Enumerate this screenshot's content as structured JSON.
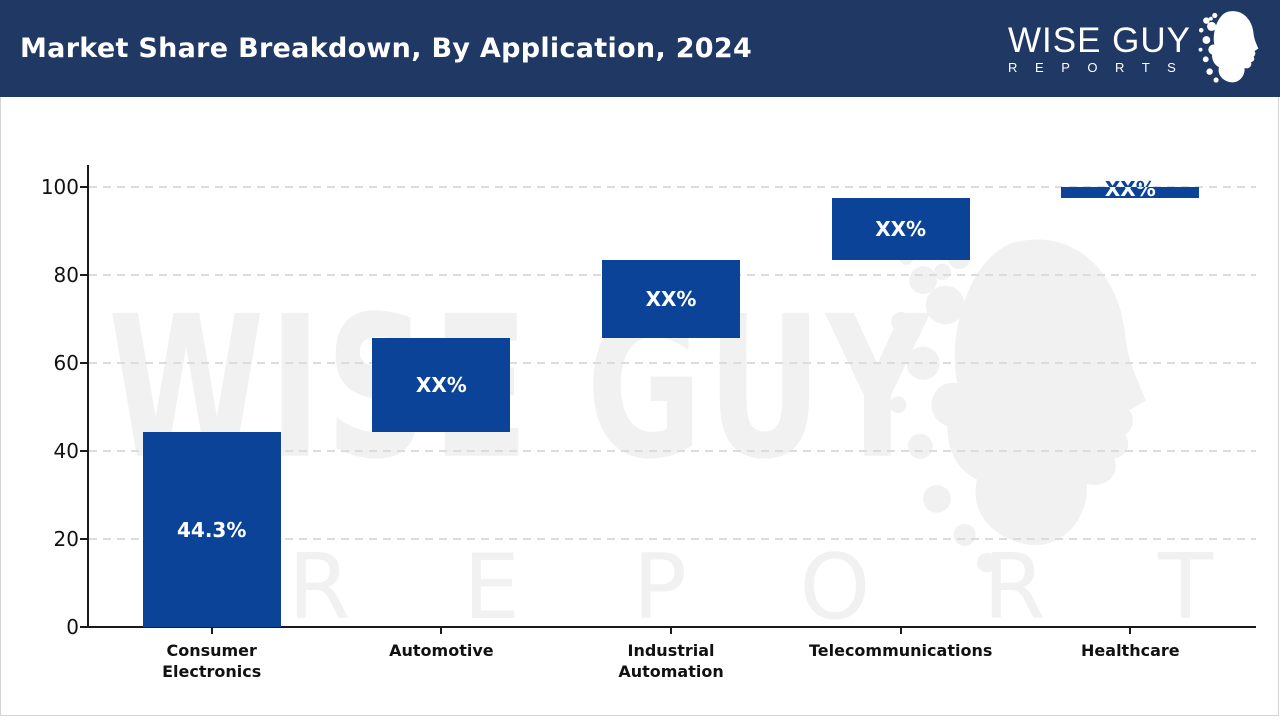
{
  "header": {
    "title": "Market Share Breakdown, By Application, 2024",
    "logo": {
      "line1": "WISE GUY",
      "line2": "R E P O R T S"
    }
  },
  "watermark": {
    "line1": "WISE GUY",
    "line2": "R E P O R T S"
  },
  "colors": {
    "header_bg": "#1f3864",
    "bar": "#0a4397",
    "grid": "#dcdcdc",
    "axis": "#1a1a1a",
    "watermark": "#f1f1f2",
    "bar_label": "#ffffff"
  },
  "chart_data": {
    "type": "bar",
    "subtype": "waterfall",
    "title": "Market Share Breakdown, By Application, 2024",
    "xlabel": "",
    "ylabel": "",
    "categories": [
      "Consumer Electronics",
      "Automotive",
      "Industrial Automation",
      "Telecommunications",
      "Healthcare"
    ],
    "category_lines": [
      [
        "Consumer",
        "Electronics"
      ],
      [
        "Automotive"
      ],
      [
        "Industrial",
        "Automation"
      ],
      [
        "Telecommunications"
      ],
      [
        "Healthcare"
      ]
    ],
    "segments": [
      {
        "category": "Consumer Electronics",
        "start": 0,
        "end": 44.3,
        "value": 44.3,
        "label": "44.3%"
      },
      {
        "category": "Automotive",
        "start": 44.3,
        "end": 65.6,
        "value": 21.3,
        "label": "XX%"
      },
      {
        "category": "Industrial Automation",
        "start": 65.6,
        "end": 83.3,
        "value": 17.7,
        "label": "XX%"
      },
      {
        "category": "Telecommunications",
        "start": 83.3,
        "end": 97.4,
        "value": 14.1,
        "label": "XX%"
      },
      {
        "category": "Healthcare",
        "start": 97.4,
        "end": 100,
        "value": 2.6,
        "label": "XX%"
      }
    ],
    "yticks": [
      0,
      20,
      40,
      60,
      80,
      100
    ],
    "ylim": [
      0,
      105
    ],
    "grid": "horizontal dashed",
    "legend": "none",
    "bar_color": "#0a4397",
    "label_color_on_bar": "#ffffff"
  }
}
